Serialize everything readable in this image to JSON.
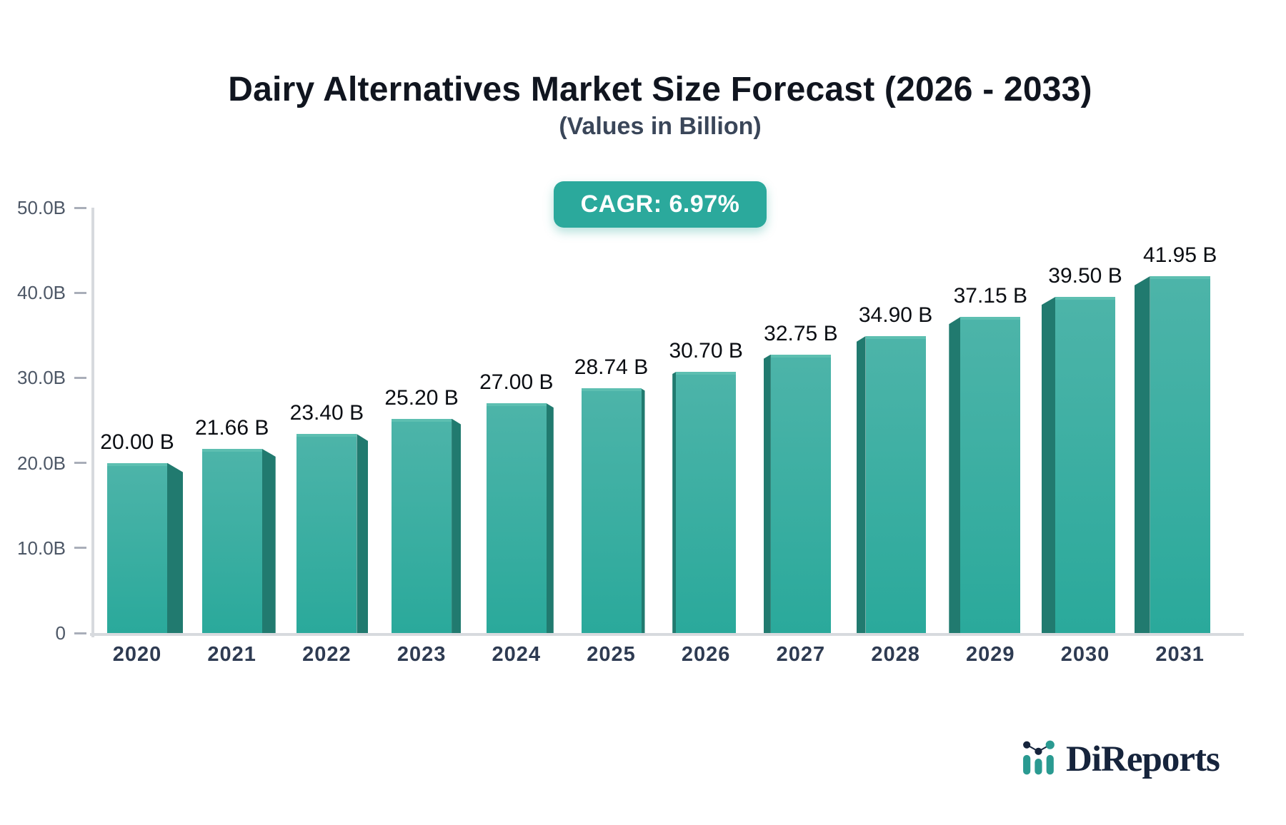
{
  "header": {
    "title": "Dairy Alternatives Market Size Forecast (2026 - 2033)",
    "subtitle": "(Values in Billion)",
    "cagr_label": "CAGR: 6.97%"
  },
  "chart_data": {
    "type": "bar",
    "title": "Dairy Alternatives Market Size Forecast (2026 - 2033)",
    "subtitle": "(Values in Billion)",
    "annotation": "CAGR: 6.97%",
    "categories": [
      "2020",
      "2021",
      "2022",
      "2023",
      "2024",
      "2025",
      "2026",
      "2027",
      "2028",
      "2029",
      "2030",
      "2031"
    ],
    "values": [
      20.0,
      21.66,
      23.4,
      25.2,
      27.0,
      28.74,
      30.7,
      32.75,
      34.9,
      37.15,
      39.5,
      41.95
    ],
    "value_labels": [
      "20.00 B",
      "21.66 B",
      "23.40 B",
      "25.20 B",
      "27.00 B",
      "28.74 B",
      "30.70 B",
      "32.75 B",
      "34.90 B",
      "37.15 B",
      "39.50 B",
      "41.95 B"
    ],
    "y_ticks": [
      {
        "label": "50.0B",
        "value": 50
      },
      {
        "label": "40.0B",
        "value": 40
      },
      {
        "label": "30.0B",
        "value": 30
      },
      {
        "label": "20.0B",
        "value": 20
      },
      {
        "label": "10.0B",
        "value": 10
      },
      {
        "label": "0",
        "value": 0
      }
    ],
    "ylim": [
      0,
      50
    ],
    "xlabel": "",
    "ylabel": "",
    "grid": false,
    "legend": null
  },
  "footer": {
    "brand": "DiReports"
  },
  "colors": {
    "accent": "#2ba99c",
    "bar_front_top": "#4db4a9",
    "bar_front_bottom": "#2aa99b",
    "bar_top_strip": "#5dbfb1",
    "bar_side": "#217a6f",
    "axis_line": "#d7dade",
    "tick_mark": "#a9aeb9",
    "y_label": "#4d5766",
    "x_label": "#2e3b52",
    "value_label": "#0b0e13",
    "logo_navy": "#16243c",
    "logo_teal": "#2a9a91"
  }
}
